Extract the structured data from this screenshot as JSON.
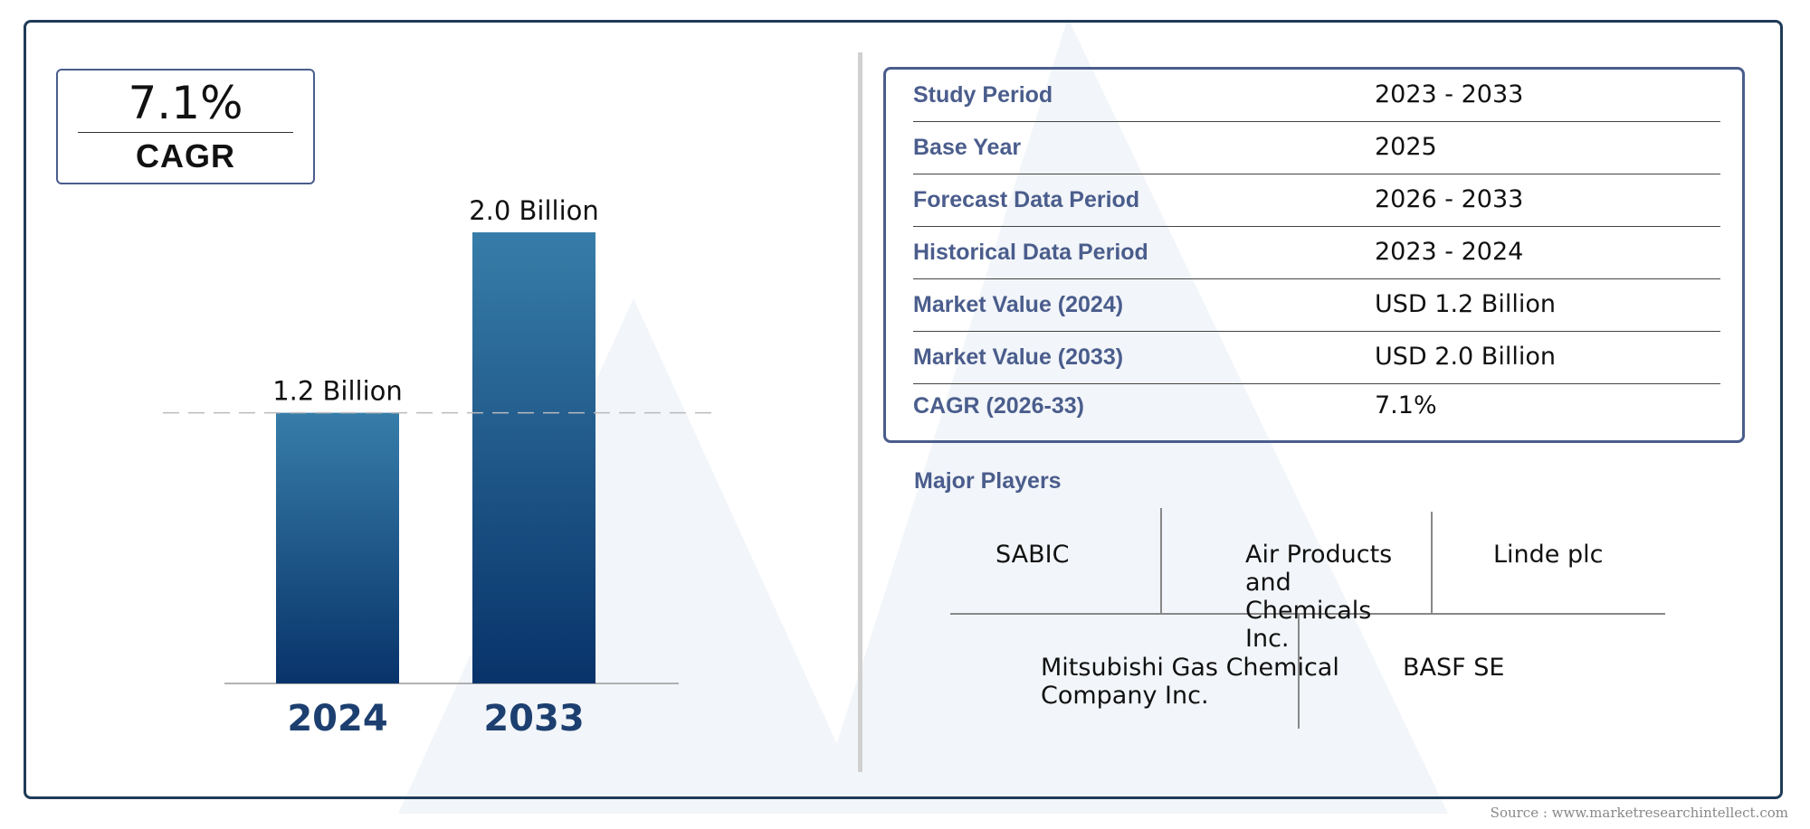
{
  "cagr_badge": {
    "value": "7.1%",
    "label": "CAGR"
  },
  "chart_data": {
    "type": "bar",
    "categories": [
      "2024",
      "2033"
    ],
    "values": [
      1.2,
      2.0
    ],
    "data_labels": [
      "1.2 Billion",
      "2.0 Billion"
    ],
    "reference_line": {
      "value": 1.2,
      "style": "dashed"
    },
    "title": "",
    "xlabel": "",
    "ylabel": "",
    "ylim": [
      0,
      2.0
    ],
    "grid": false,
    "colors": {
      "bar_top": "#377da9",
      "bar_bottom": "#08336a",
      "axis_label": "#1c3f70"
    }
  },
  "info_table": {
    "rows": [
      {
        "label": "Study Period",
        "value": "2023 - 2033"
      },
      {
        "label": "Base Year",
        "value": "2025"
      },
      {
        "label": "Forecast Data Period",
        "value": "2026 - 2033"
      },
      {
        "label": "Historical Data Period",
        "value": "2023 - 2024"
      },
      {
        "label": "Market Value (2024)",
        "value": "USD 1.2 Billion"
      },
      {
        "label": "Market Value (2033)",
        "value": "USD 2.0 Billion"
      },
      {
        "label": "CAGR (2026-33)",
        "value": "7.1%"
      }
    ]
  },
  "major_players": {
    "title": "Major Players",
    "players": [
      "SABIC",
      "Air Products and Chemicals Inc.",
      "Linde plc",
      "Mitsubishi Gas Chemical Company Inc.",
      "BASF SE"
    ]
  },
  "source": "Source : www.marketresearchintellect.com"
}
